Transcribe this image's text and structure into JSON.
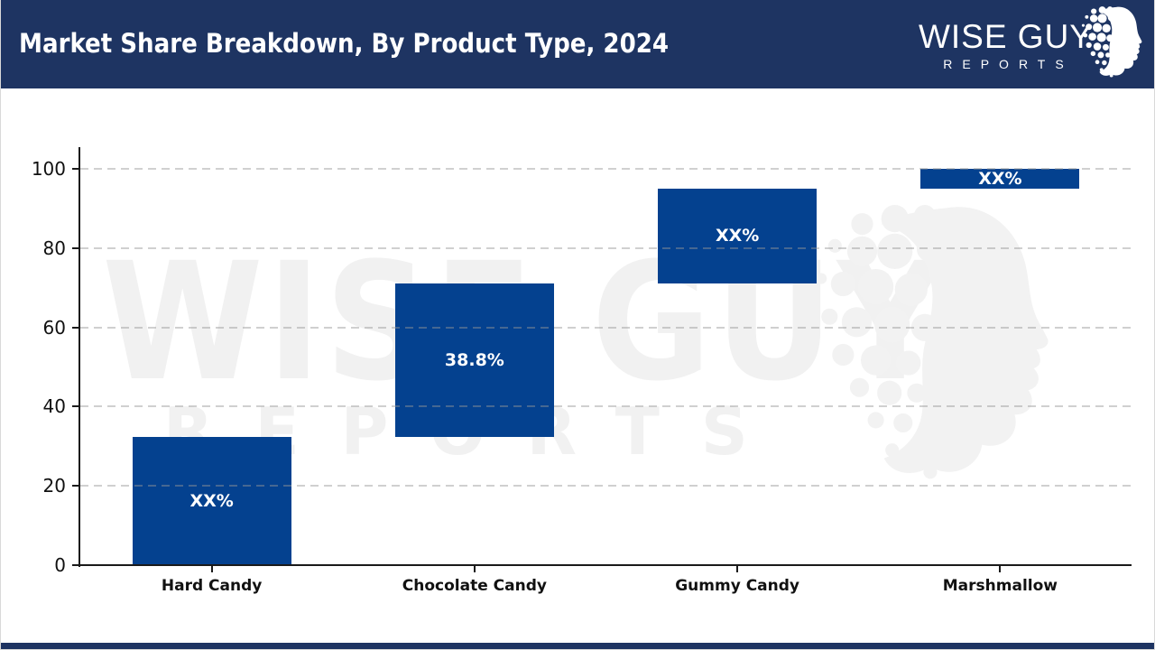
{
  "page": {
    "background": "#ffffff",
    "border_color": "#d9d9d9"
  },
  "header": {
    "title": "Market Share Breakdown, By Product Type, 2024",
    "background": "#1e3462",
    "logo": {
      "primary": "WISE GUY",
      "secondary": "REPORTS"
    }
  },
  "watermark": {
    "primary": "WISE GUY",
    "secondary": "REPORTS"
  },
  "footer": {
    "background": "#1e3462"
  },
  "chart_data": {
    "type": "bar",
    "subtype": "waterfall",
    "title": "Market Share Breakdown, By Product Type, 2024",
    "xlabel": "",
    "ylabel": "",
    "categories": [
      "Hard Candy",
      "Chocolate Candy",
      "Gummy Candy",
      "Marshmallow"
    ],
    "segments": [
      {
        "category": "Hard Candy",
        "start": 0,
        "end": 32.4,
        "label": "XX%"
      },
      {
        "category": "Chocolate Candy",
        "start": 32.4,
        "end": 71.2,
        "label": "38.8%"
      },
      {
        "category": "Gummy Candy",
        "start": 71.2,
        "end": 95.0,
        "label": "XX%"
      },
      {
        "category": "Marshmallow",
        "start": 95.0,
        "end": 100.0,
        "label": "XX%"
      }
    ],
    "yticks": [
      0,
      20,
      40,
      60,
      80,
      100
    ],
    "ylim": [
      0,
      105.5
    ],
    "grid": {
      "axis": "y",
      "style": "dashed"
    },
    "legend_position": "none",
    "bar_color": "#04418f",
    "bar_label_color": "#ffffff",
    "axis_color": "#1a1a1a"
  }
}
